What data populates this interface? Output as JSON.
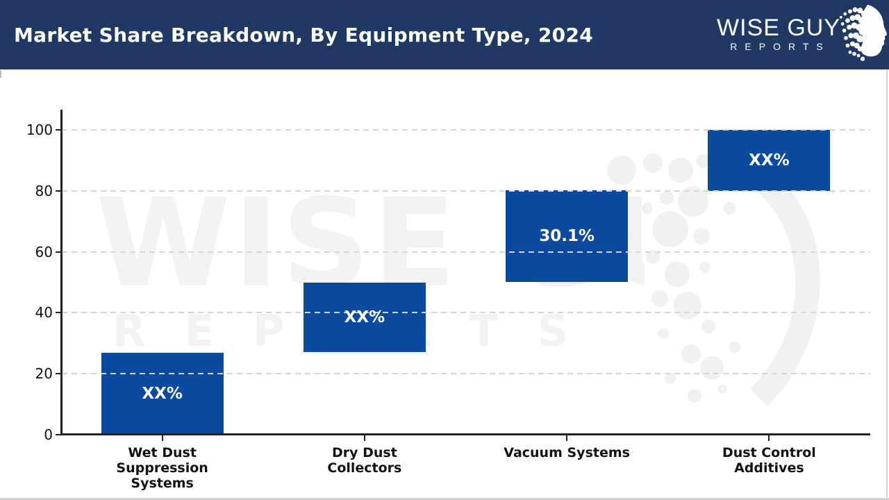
{
  "header": {
    "title": "Market Share Breakdown, By Equipment Type, 2024",
    "logo": {
      "line1": "WISE GUY",
      "line2": "REPORTS"
    }
  },
  "watermark": {
    "line1": "WISE GUY",
    "line2": "REPORTS"
  },
  "chart_data": {
    "type": "bar",
    "subtype": "waterfall",
    "title": "Market Share Breakdown, By Equipment Type, 2024",
    "xlabel": "",
    "ylabel": "",
    "ylim": [
      0,
      100
    ],
    "y_ticks": [
      0,
      20,
      40,
      60,
      80,
      100
    ],
    "grid": "horizontal-dashed",
    "legend": "none",
    "bar_color": "#0B4A9F",
    "bar_label_color": "#ffffff",
    "categories": [
      "Wet Dust Suppression Systems",
      "Dry Dust Collectors",
      "Vacuum Systems",
      "Dust Control Additives"
    ],
    "segments": [
      {
        "category_lines": [
          "Wet Dust",
          "Suppression",
          "Systems"
        ],
        "start": 0,
        "end": 26.9,
        "value": 26.9,
        "label": "XX%"
      },
      {
        "category_lines": [
          "Dry Dust",
          "Collectors"
        ],
        "start": 27,
        "end": 50,
        "value": 23,
        "label": "XX%"
      },
      {
        "category_lines": [
          "Vacuum Systems"
        ],
        "start": 50,
        "end": 80.1,
        "value": 30.1,
        "label": "30.1%"
      },
      {
        "category_lines": [
          "Dust Control",
          "Additives"
        ],
        "start": 80,
        "end": 100,
        "value": 20,
        "label": "XX%"
      }
    ]
  }
}
